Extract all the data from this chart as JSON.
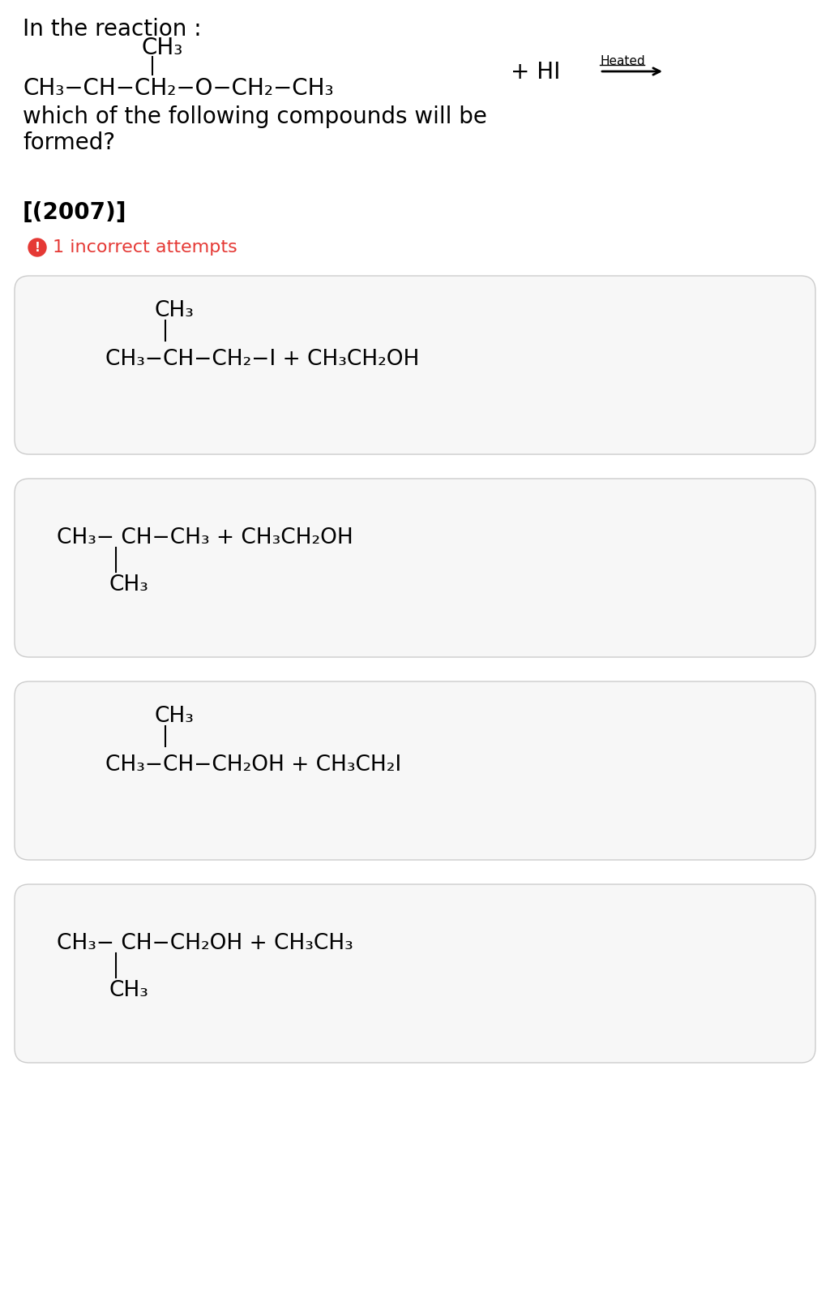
{
  "bg_color": "#ffffff",
  "title_line1": "In the reaction :",
  "reaction_ch3_top": "CH₃",
  "reaction_main": "CH₃−CH−CH₂−O−CH₂−CH₃",
  "reaction_hi": "+ HI",
  "reaction_heated": "Heated",
  "reaction_question": "which of the following compounds will be\nformed?",
  "year_tag": "[(2007)]",
  "incorrect_text": "1 incorrect attempts",
  "options": [
    {
      "type": "branch_top",
      "branch_label": "CH₃",
      "main_formula": "CH₃−CH−CH₂−I + CH₃CH₂OH"
    },
    {
      "type": "branch_bottom",
      "main_formula": "CH₃− CH−CH₃ + CH₃CH₂OH",
      "branch_label": "CH₃"
    },
    {
      "type": "branch_top",
      "branch_label": "CH₃",
      "main_formula": "CH₃−CH−CH₂OH + CH₃CH₂I"
    },
    {
      "type": "branch_bottom",
      "main_formula": "CH₃− CH−CH₂OH + CH₃CH₃",
      "branch_label": "CH₃"
    }
  ],
  "text_color": "#000000",
  "incorrect_color": "#e53935",
  "box_bg": "#f7f7f7",
  "box_border": "#cccccc",
  "fs_title": 20,
  "fs_rxn": 20,
  "fs_hi": 20,
  "fs_heated": 11,
  "fs_question": 20,
  "fs_year": 20,
  "fs_incorrect": 16,
  "fs_option": 19,
  "fs_option_sub": 13
}
